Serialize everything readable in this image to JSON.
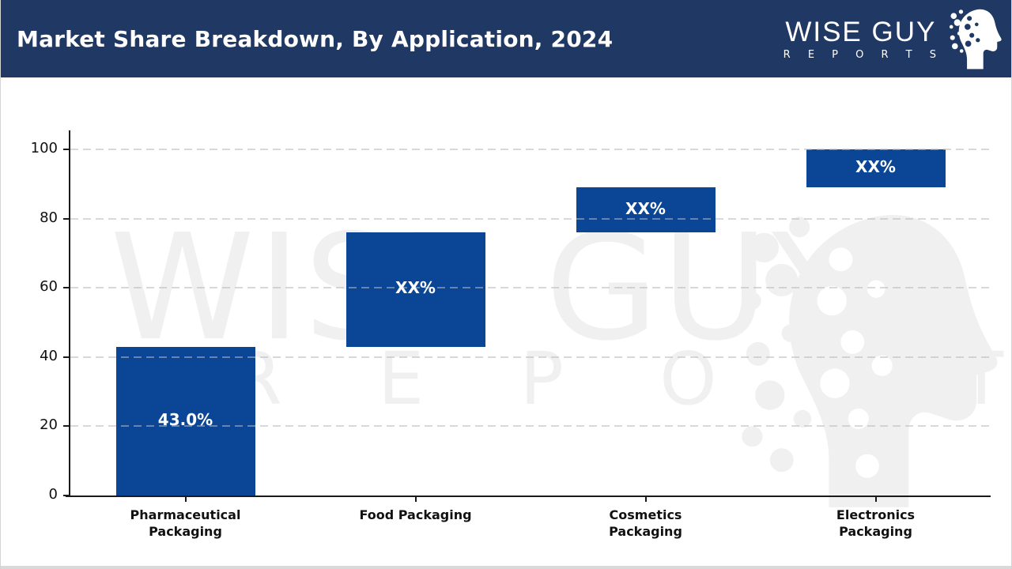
{
  "header": {
    "title": "Market Share Breakdown, By Application, 2024",
    "bg_color": "#203864",
    "logo": {
      "name": "WISE GUY",
      "subname": "R E P O R T S"
    }
  },
  "watermark": {
    "line1": "WISE GUY",
    "line2": "R E P O R T S"
  },
  "chart_data": {
    "type": "bar",
    "subtype": "waterfall",
    "title": "Market Share Breakdown, By Application, 2024",
    "categories": [
      "Pharmaceutical Packaging",
      "Food Packaging",
      "Cosmetics Packaging",
      "Electronics Packaging"
    ],
    "category_lines": [
      [
        "Pharmaceutical",
        "Packaging"
      ],
      [
        "Food Packaging"
      ],
      [
        "Cosmetics",
        "Packaging"
      ],
      [
        "Electronics",
        "Packaging"
      ]
    ],
    "segments": [
      {
        "category": "Pharmaceutical Packaging",
        "start": 0,
        "end": 43,
        "label": "43.0%"
      },
      {
        "category": "Food Packaging",
        "start": 43,
        "end": 76,
        "label": "XX%"
      },
      {
        "category": "Cosmetics Packaging",
        "start": 76,
        "end": 89,
        "label": "XX%"
      },
      {
        "category": "Electronics Packaging",
        "start": 89,
        "end": 100,
        "label": "XX%"
      }
    ],
    "ylim": [
      0,
      100
    ],
    "yticks": [
      0,
      20,
      40,
      60,
      80,
      100
    ],
    "bar_color": "#0a4596",
    "grid": "horizontal dashed",
    "legend_position": "none"
  }
}
